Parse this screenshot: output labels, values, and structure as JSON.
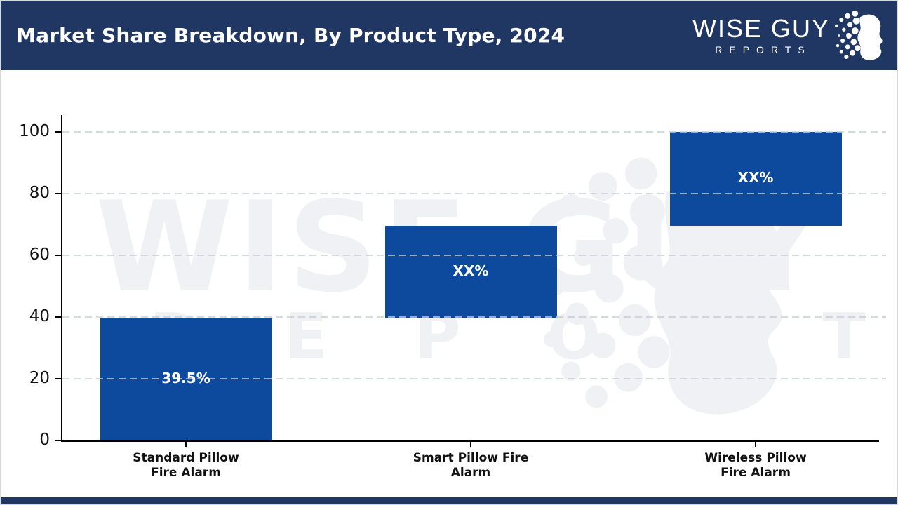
{
  "header": {
    "title": "Market Share Breakdown, By Product Type, 2024",
    "bg_color": "#213763",
    "logo": {
      "line1": "WISE GUY",
      "line2": "REPORTS"
    }
  },
  "watermark": {
    "line1": "WISE GUY",
    "line2": "R E P O R T S"
  },
  "chart_data": {
    "type": "bar",
    "subtype": "waterfall",
    "title": "Market Share Breakdown, By Product Type, 2024",
    "xlabel": "",
    "ylabel": "",
    "categories": [
      [
        "Standard Pillow",
        "Fire Alarm"
      ],
      [
        "Smart Pillow Fire",
        "Alarm"
      ],
      [
        "Wireless Pillow",
        "Fire Alarm"
      ]
    ],
    "segments": [
      {
        "category": "Standard Pillow Fire Alarm",
        "start": 0,
        "end": 39.5,
        "label": "39.5%"
      },
      {
        "category": "Smart Pillow Fire Alarm",
        "start": 39.5,
        "end": 69.5,
        "label": "XX%"
      },
      {
        "category": "Wireless Pillow Fire Alarm",
        "start": 69.5,
        "end": 100,
        "label": "XX%"
      }
    ],
    "ylim": [
      0,
      105
    ],
    "yticks": [
      0,
      20,
      40,
      60,
      80,
      100
    ],
    "grid": "horizontal-dashed-over-bars",
    "legend": "none",
    "bar_color": "#0d4a9e",
    "label_color": "#ffffff",
    "axis_color": "#000000",
    "tick_label_color": "#111111"
  }
}
